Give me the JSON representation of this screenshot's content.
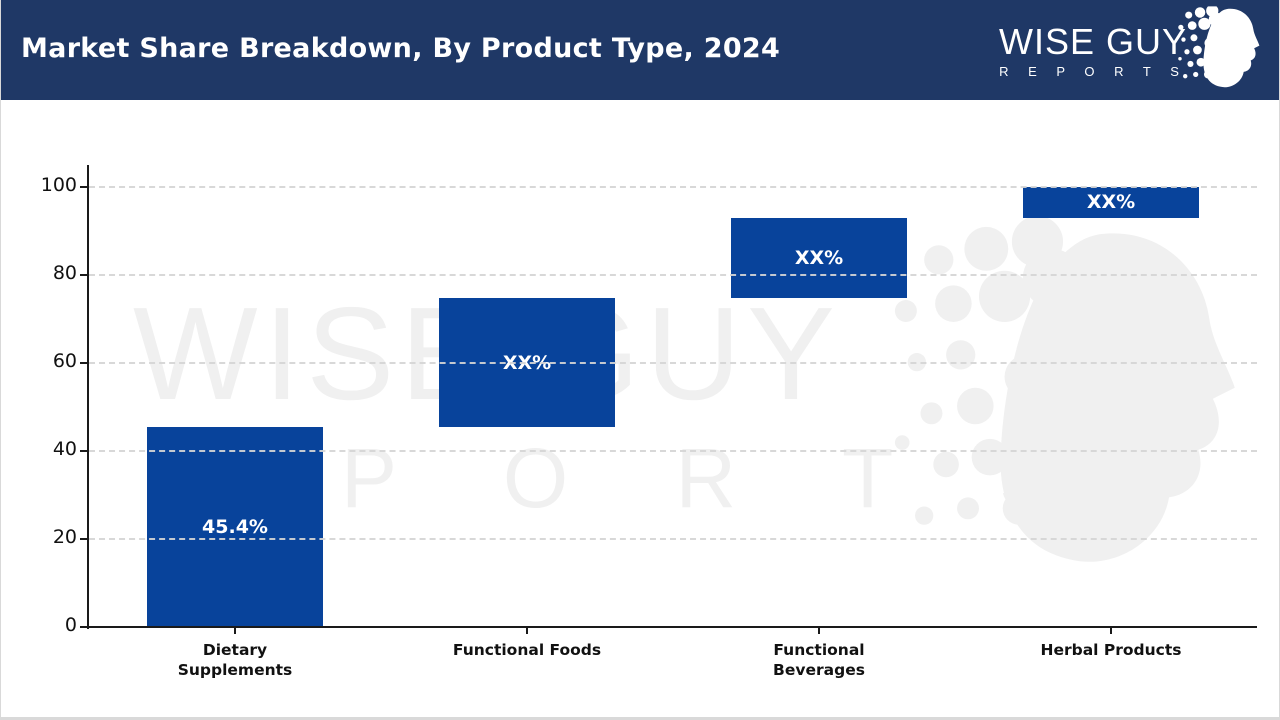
{
  "header": {
    "title": "Market Share Breakdown, By Product Type, 2024",
    "background_color": "#1f3866",
    "logo": {
      "line1": "WISE GUY",
      "line2": "R E P O R T S"
    }
  },
  "watermark": {
    "line1": "WISE GUY",
    "line2": "P O R T S"
  },
  "chart_data": {
    "type": "bar",
    "subtype": "waterfall",
    "title": "Market Share Breakdown, By Product Type, 2024",
    "xlabel": "",
    "ylabel": "",
    "ylim": [
      0,
      105
    ],
    "yticks": [
      0,
      20,
      40,
      60,
      80,
      100
    ],
    "grid": "horizontal-dashed",
    "grid_color": "#d5d5d5",
    "bar_color": "#08439b",
    "value_label_color": "#ffffff",
    "categories": [
      "Dietary Supplements",
      "Functional Foods",
      "Functional Beverages",
      "Herbal Products"
    ],
    "bars": [
      {
        "category": "Dietary Supplements",
        "category_lines": [
          "Dietary",
          "Supplements"
        ],
        "start": 0,
        "end": 45.4,
        "label": "45.4%"
      },
      {
        "category": "Functional Foods",
        "category_lines": [
          "Functional Foods"
        ],
        "start": 45.4,
        "end": 74.8,
        "label": "XX%"
      },
      {
        "category": "Functional Beverages",
        "category_lines": [
          "Functional",
          "Beverages"
        ],
        "start": 74.8,
        "end": 93.0,
        "label": "XX%"
      },
      {
        "category": "Herbal Products",
        "category_lines": [
          "Herbal Products"
        ],
        "start": 93.0,
        "end": 100.0,
        "label": "XX%"
      }
    ]
  }
}
